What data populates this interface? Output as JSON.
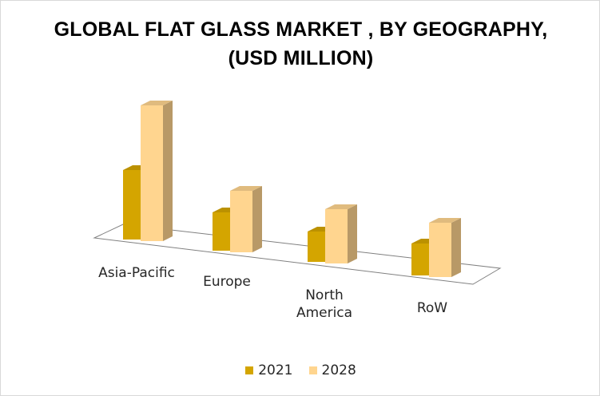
{
  "title_line1": "GLOBAL FLAT GLASS MARKET , BY GEOGRAPHY,",
  "title_line2": "(USD MILLION)",
  "chart_data": {
    "type": "bar",
    "title": "GLOBAL FLAT GLASS MARKET , BY GEOGRAPHY, (USD MILLION)",
    "categories": [
      "Asia-Pacific",
      "Europe",
      "North America",
      "RoW"
    ],
    "series": [
      {
        "name": "2021",
        "values": [
          87,
          48,
          38,
          40
        ],
        "color": "#d4a500"
      },
      {
        "name": "2028",
        "values": [
          170,
          77,
          68,
          68
        ],
        "color": "#ffd58f"
      }
    ],
    "xlabel": "",
    "ylabel": "",
    "ylim": [
      0,
      180
    ],
    "grid": false,
    "legend": "bottom"
  }
}
